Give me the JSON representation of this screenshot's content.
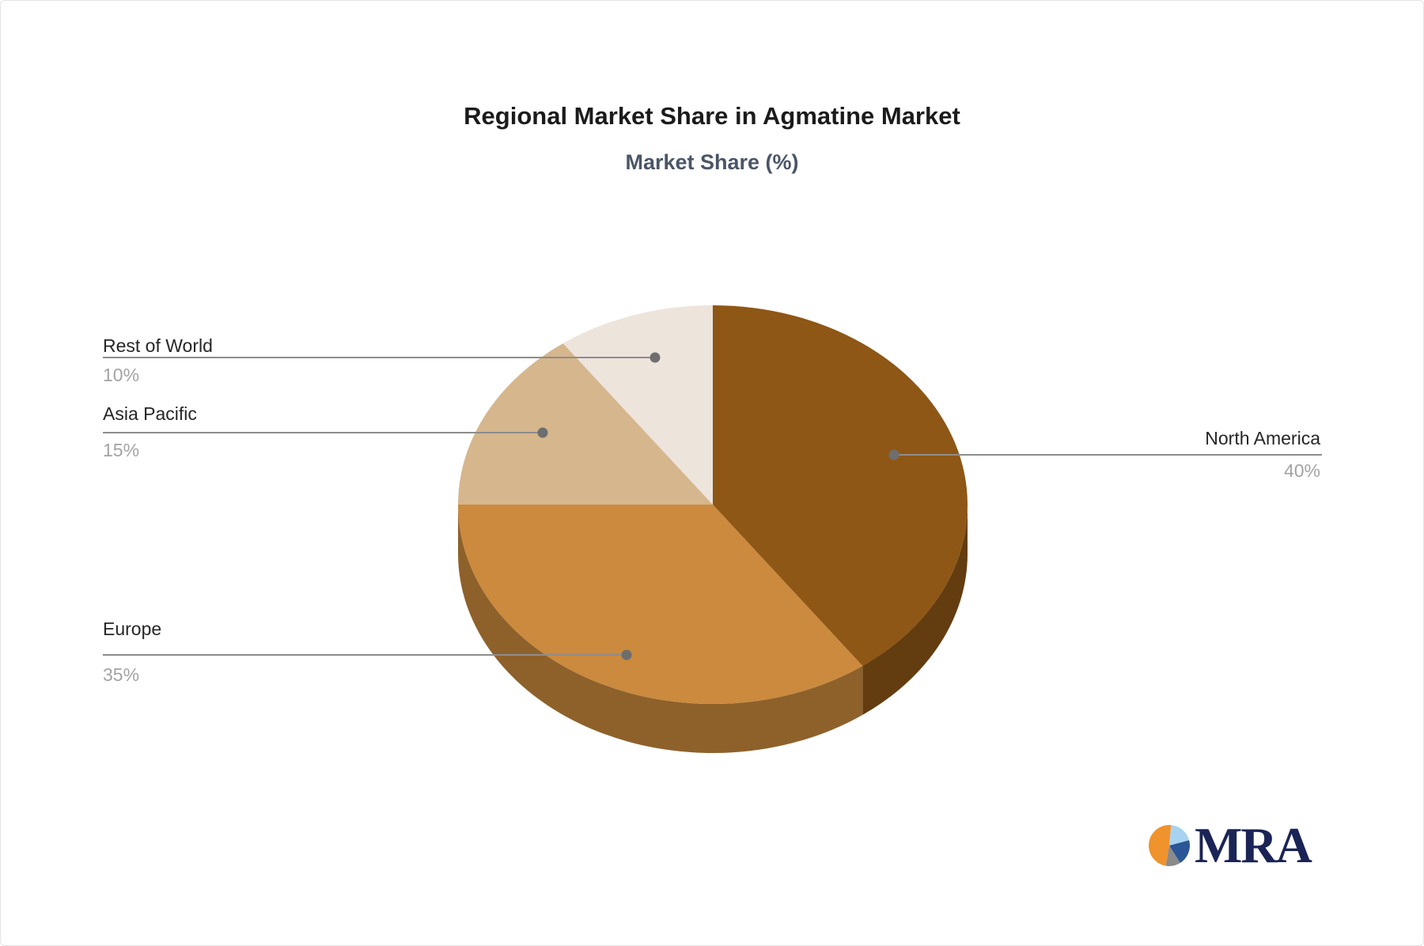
{
  "page": {
    "background_color": "#ffffff",
    "border_color": "#e3e3e3"
  },
  "chart_data": {
    "type": "pie",
    "style": "3d",
    "title": "Regional Market Share in Agmatine Market",
    "subtitle": "Market Share (%)",
    "unit": "%",
    "direction": "clockwise",
    "start_angle_deg": 0,
    "legend": "none",
    "slices": [
      {
        "label": "North America",
        "value": 40,
        "pct_label": "40%",
        "color": "#8E5716"
      },
      {
        "label": "Europe",
        "value": 35,
        "pct_label": "35%",
        "color": "#CB8A3E"
      },
      {
        "label": "Asia Pacific",
        "value": 15,
        "pct_label": "15%",
        "color": "#D6B68D"
      },
      {
        "label": "Rest of World",
        "value": 10,
        "pct_label": "10%",
        "color": "#EDE4DC"
      }
    ],
    "label_style": {
      "name_color": "#262626",
      "value_color": "#a3a3a3",
      "leader_line_color": "#8d8d8d",
      "leader_dot_color": "#6e6e6e"
    },
    "title_color": "#1b1b1b",
    "subtitle_color": "#4a5568"
  },
  "branding": {
    "logo_text": "MRA",
    "logo_text_color": "#1a2456",
    "logo_pie_colors": [
      "#F0932D",
      "#A8D3F0",
      "#2A5697",
      "#8B8B8B"
    ]
  }
}
